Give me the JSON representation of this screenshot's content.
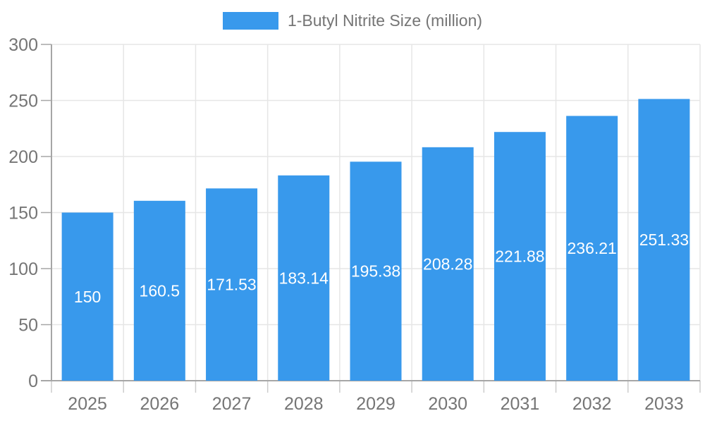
{
  "legend": {
    "label": "1-Butyl Nitrite Size (million)",
    "position": "top"
  },
  "chart_data": {
    "type": "bar",
    "title": "",
    "xlabel": "",
    "ylabel": "",
    "series_name": "1-Butyl Nitrite Size (million)",
    "categories": [
      "2025",
      "2026",
      "2027",
      "2028",
      "2029",
      "2030",
      "2031",
      "2032",
      "2033"
    ],
    "values": [
      150,
      160.5,
      171.53,
      183.14,
      195.38,
      208.28,
      221.88,
      236.21,
      251.33
    ],
    "value_labels": [
      "150",
      "160.5",
      "171.53",
      "183.14",
      "195.38",
      "208.28",
      "221.88",
      "236.21",
      "251.33"
    ],
    "ylim": [
      0,
      300
    ],
    "yticks": [
      0,
      50,
      100,
      150,
      200,
      250,
      300
    ],
    "grid": true,
    "legend_position": "top",
    "colors": {
      "bar": "#3899EC",
      "value_label": "#ffffff",
      "axis_text": "#757575",
      "gridline": "#e6e6e6",
      "axis_line": "#a6a6a6",
      "x_tick": "#cccccc",
      "background": "#ffffff"
    }
  }
}
